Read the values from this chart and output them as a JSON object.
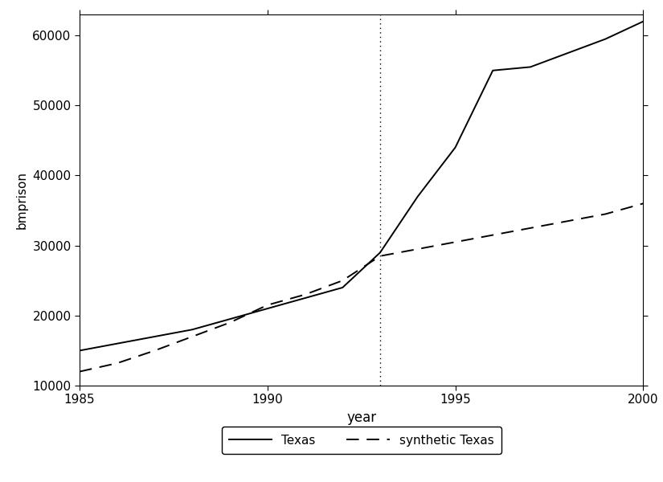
{
  "title": "",
  "xlabel": "year",
  "ylabel": "bmprison",
  "vline_x": 1993,
  "xlim": [
    1985,
    2000
  ],
  "ylim": [
    10000,
    63000
  ],
  "xticks": [
    1985,
    1990,
    1995,
    2000
  ],
  "yticks": [
    10000,
    20000,
    30000,
    40000,
    50000,
    60000
  ],
  "texas_years": [
    1985,
    1986,
    1987,
    1988,
    1989,
    1990,
    1991,
    1992,
    1993,
    1994,
    1995,
    1996,
    1997,
    1998,
    1999,
    2000
  ],
  "texas_values": [
    15000,
    16000,
    17000,
    18000,
    19500,
    21000,
    22500,
    24000,
    29000,
    37000,
    44000,
    55000,
    55500,
    57500,
    59500,
    62000
  ],
  "synthetic_years": [
    1985,
    1986,
    1987,
    1988,
    1989,
    1990,
    1991,
    1992,
    1993,
    1994,
    1995,
    1996,
    1997,
    1998,
    1999,
    2000
  ],
  "synthetic_values": [
    12000,
    13200,
    15000,
    17000,
    19000,
    21500,
    23000,
    25000,
    28500,
    29500,
    30500,
    31500,
    32500,
    33500,
    34500,
    36000
  ],
  "texas_color": "#000000",
  "synthetic_color": "#000000",
  "background_color": "#ffffff",
  "legend_texas": "Texas",
  "legend_synthetic": "synthetic Texas",
  "linewidth": 1.4,
  "ylabel_fontsize": 11,
  "xlabel_fontsize": 12,
  "tick_labelsize": 11
}
